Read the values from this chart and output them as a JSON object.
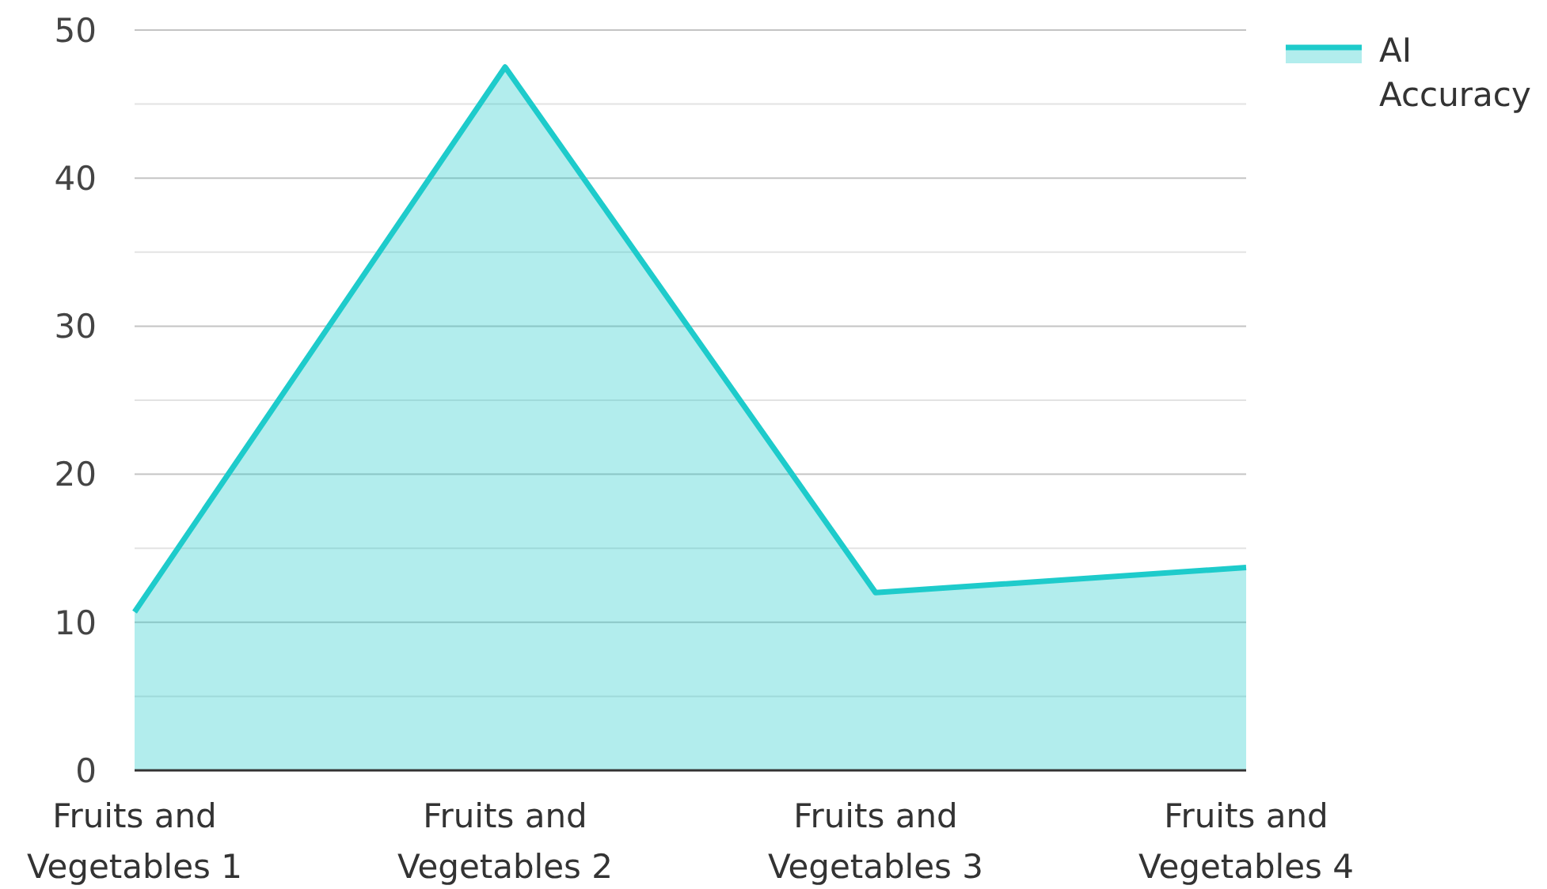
{
  "chart_data": {
    "type": "area",
    "categories": [
      "Fruits and Vegetables 1",
      "Fruits and Vegetables 2",
      "Fruits and Vegetables 3",
      "Fruits and Vegetables 4"
    ],
    "series": [
      {
        "name": "AI Accuracy",
        "color": "#1ecbcb",
        "values": [
          10.7,
          47.5,
          12.0,
          13.7
        ]
      }
    ],
    "ylim": [
      0,
      50
    ],
    "yticks": [
      0,
      {
        "value": 5,
        "label": null
      },
      10,
      {
        "value": 15,
        "label": null
      },
      20,
      {
        "value": 25,
        "label": null
      },
      30,
      {
        "value": 35,
        "label": null
      },
      40,
      {
        "value": 45,
        "label": null
      },
      50
    ],
    "grid": "y",
    "legend": "top right"
  }
}
